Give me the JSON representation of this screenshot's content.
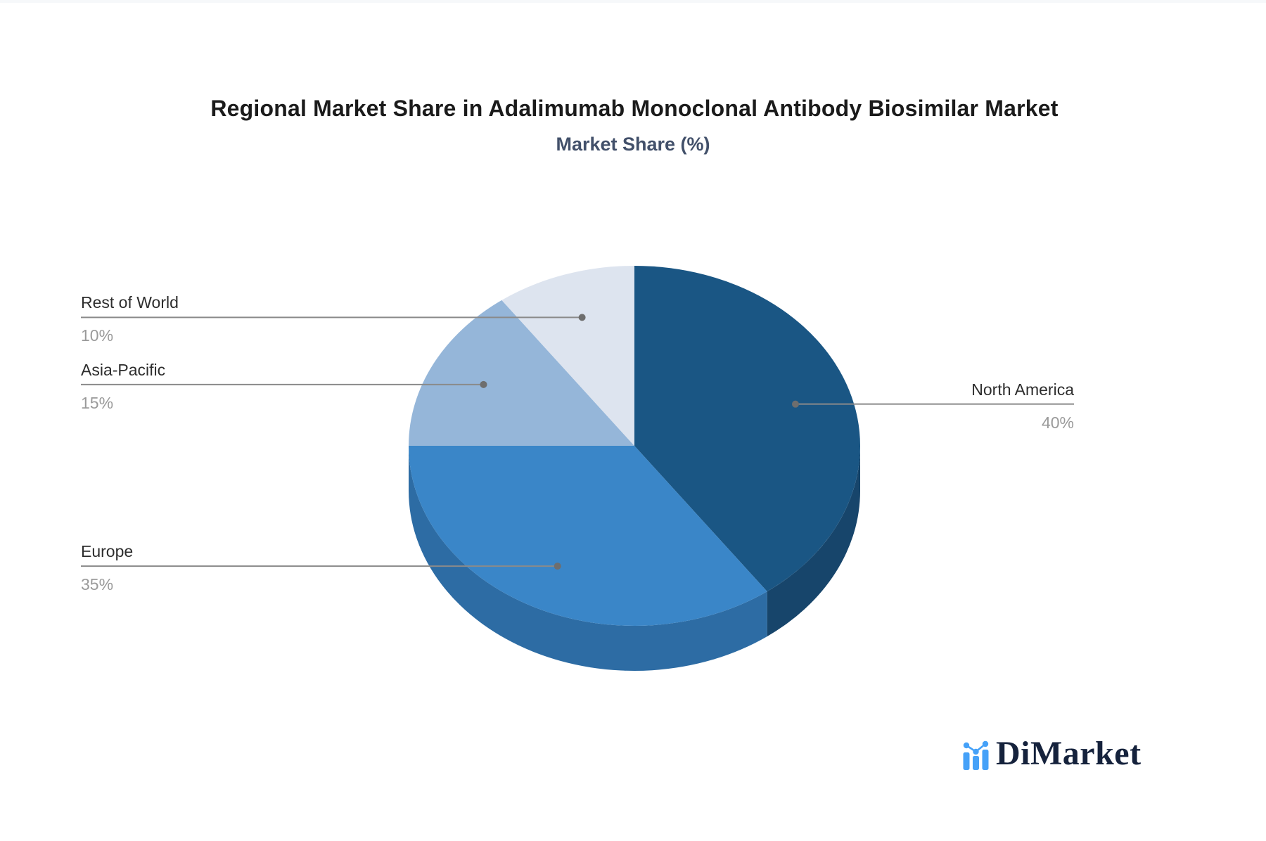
{
  "title": "Regional Market Share in Adalimumab Monoclonal Antibody Biosimilar Market",
  "subtitle": "Market Share (%)",
  "logo": {
    "text": "DiMarket",
    "icon": "bar-chart-trend-icon",
    "icon_color": "#45a1f8",
    "text_color": "#15223c"
  },
  "chart_data": {
    "type": "pie",
    "style": "3d-pie",
    "title": "Regional Market Share in Adalimumab Monoclonal Antibody Biosimilar Market",
    "subtitle": "Market Share (%)",
    "unit": "%",
    "start_angle_deg": 90,
    "direction": "clockwise",
    "legend": "none",
    "categories": [
      "North America",
      "Europe",
      "Asia-Pacific",
      "Rest of World"
    ],
    "values": [
      40,
      35,
      15,
      10
    ],
    "series": [
      {
        "name": "North America",
        "value": 40,
        "display": "40%",
        "color": "#1a5684",
        "side_color": "#17456b"
      },
      {
        "name": "Europe",
        "value": 35,
        "display": "35%",
        "color": "#3a86c8",
        "side_color": "#2d6ca4"
      },
      {
        "name": "Asia-Pacific",
        "value": 15,
        "display": "15%",
        "color": "#95b6d9",
        "side_color": "#7d9cbd"
      },
      {
        "name": "Rest of World",
        "value": 10,
        "display": "10%",
        "color": "#dde4ef",
        "side_color": "#bcc7d6"
      }
    ],
    "leader_line_color": "#8a8a8a",
    "leader_dot_color": "#6e6e6e",
    "label_color": "#2d2d2d",
    "percent_color": "#9a9a9a"
  }
}
